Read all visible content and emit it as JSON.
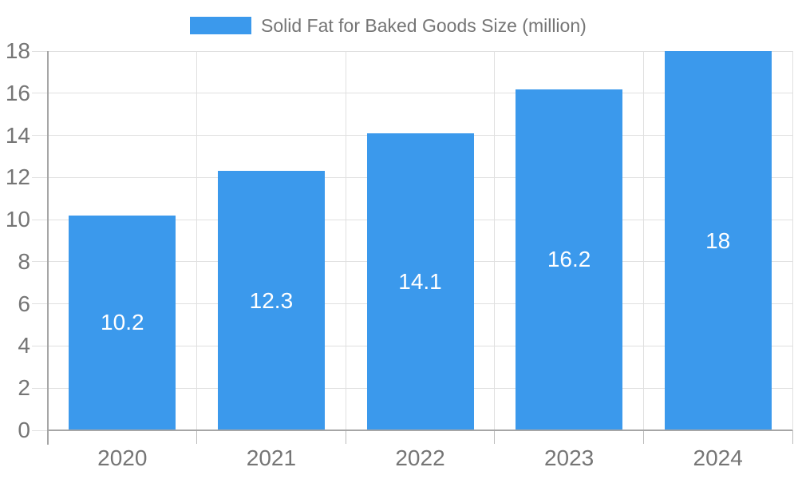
{
  "chart_data": {
    "type": "bar",
    "legend": "Solid Fat for Baked Goods Size (million)",
    "categories": [
      "2020",
      "2021",
      "2022",
      "2023",
      "2024"
    ],
    "values": [
      10.2,
      12.3,
      14.1,
      16.2,
      18
    ],
    "value_labels": [
      "10.2",
      "12.3",
      "14.1",
      "16.2",
      "18"
    ],
    "title": "",
    "xlabel": "",
    "ylabel": "",
    "ylim": [
      0,
      18
    ],
    "yticks": [
      0,
      2,
      4,
      6,
      8,
      10,
      12,
      14,
      16,
      18
    ],
    "ytick_labels": [
      "0",
      "2",
      "4",
      "6",
      "8",
      "10",
      "12",
      "14",
      "16",
      "18"
    ],
    "grid": "on",
    "legend_position": "top-center",
    "bar_color": "#3b99ec",
    "label_color": "#757575",
    "data_label_color": "#ffffff",
    "gridline_color": "#e0e0e0",
    "axis_line_color": "#a6a6a6",
    "background_color": "#ffffff"
  }
}
